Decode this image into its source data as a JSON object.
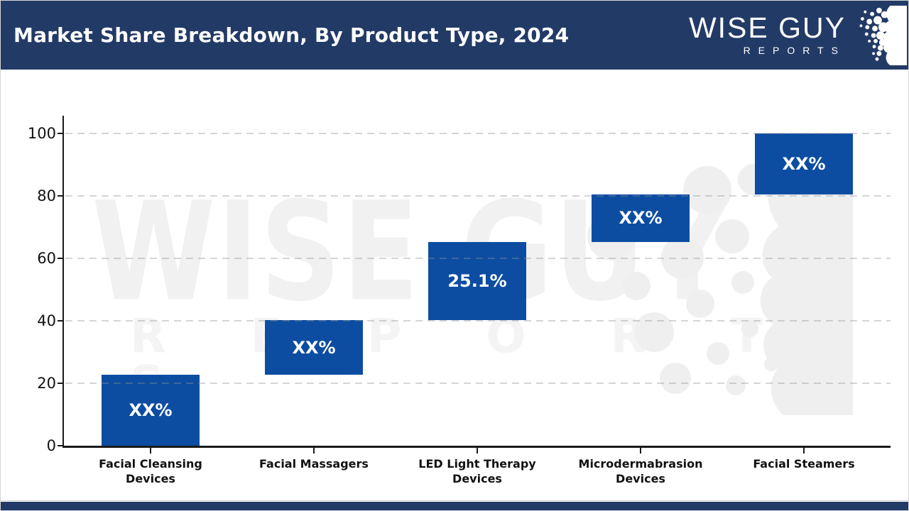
{
  "header": {
    "title": "Market Share Breakdown, By Product Type, 2024",
    "brand_line1": "WISE GUY",
    "brand_line2": "REPORTS"
  },
  "colors": {
    "header_bg": "#223A66",
    "bar": "#0C4DA2",
    "axis": "#1a1a1a",
    "gridline_rgba": "rgba(145,145,145,0.38)",
    "bar_label_text": "#ffffff",
    "watermark": "#f1f1f1"
  },
  "watermark": {
    "line1": "WISE GUY",
    "line2": "R E P O R T S"
  },
  "chart_data": {
    "type": "bar",
    "subtype": "waterfall",
    "title": "Market Share Breakdown, By Product Type, 2024",
    "categories": [
      "Facial Cleansing\nDevices",
      "Facial Massagers",
      "LED Light Therapy\nDevices",
      "Microdermabrasion\nDevices",
      "Facial Steamers"
    ],
    "values": [
      22.7,
      17.5,
      25.1,
      15.1,
      19.6
    ],
    "cumulative_start": [
      0,
      22.7,
      40.2,
      65.3,
      80.4
    ],
    "cumulative_end": [
      22.7,
      40.2,
      65.3,
      80.4,
      100
    ],
    "bar_labels": [
      "XX%",
      "XX%",
      "25.1%",
      "XX%",
      "XX%"
    ],
    "xlabel": "",
    "ylabel": "",
    "ylim": [
      0,
      105
    ],
    "yticks": [
      0,
      20,
      40,
      60,
      80,
      100
    ],
    "grid": "horizontal dashed, drawn over bars",
    "legend": null
  }
}
